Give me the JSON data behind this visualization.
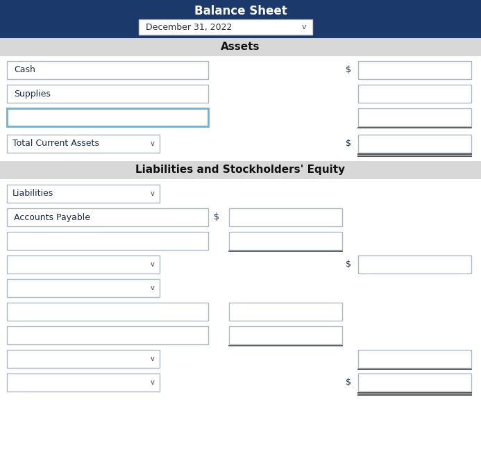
{
  "title": "Balance Sheet",
  "subtitle": "December 31, 2022",
  "header_bg": "#1b3a6b",
  "header_text_color": "#ffffff",
  "section_bg": "#d8d8d8",
  "section_text_color": "#1a1a1a",
  "body_bg": "#ffffff",
  "box_border": "#bbbbbb",
  "box_border_dotted": "#b0b8c8",
  "box_highlight_border": "#6ab0e0",
  "line_color": "#555555",
  "text_color": "#1a2a4a",
  "figsize": [
    6.93,
    6.67
  ],
  "dpi": 100,
  "assets_section": "Assets",
  "liabilities_section": "Liabilities and Stockholders' Equity",
  "cash_label": "Cash",
  "supplies_label": "Supplies",
  "total_current_assets_label": "Total Current Assets",
  "liabilities_label": "Liabilities",
  "accounts_payable_label": "Accounts Payable"
}
